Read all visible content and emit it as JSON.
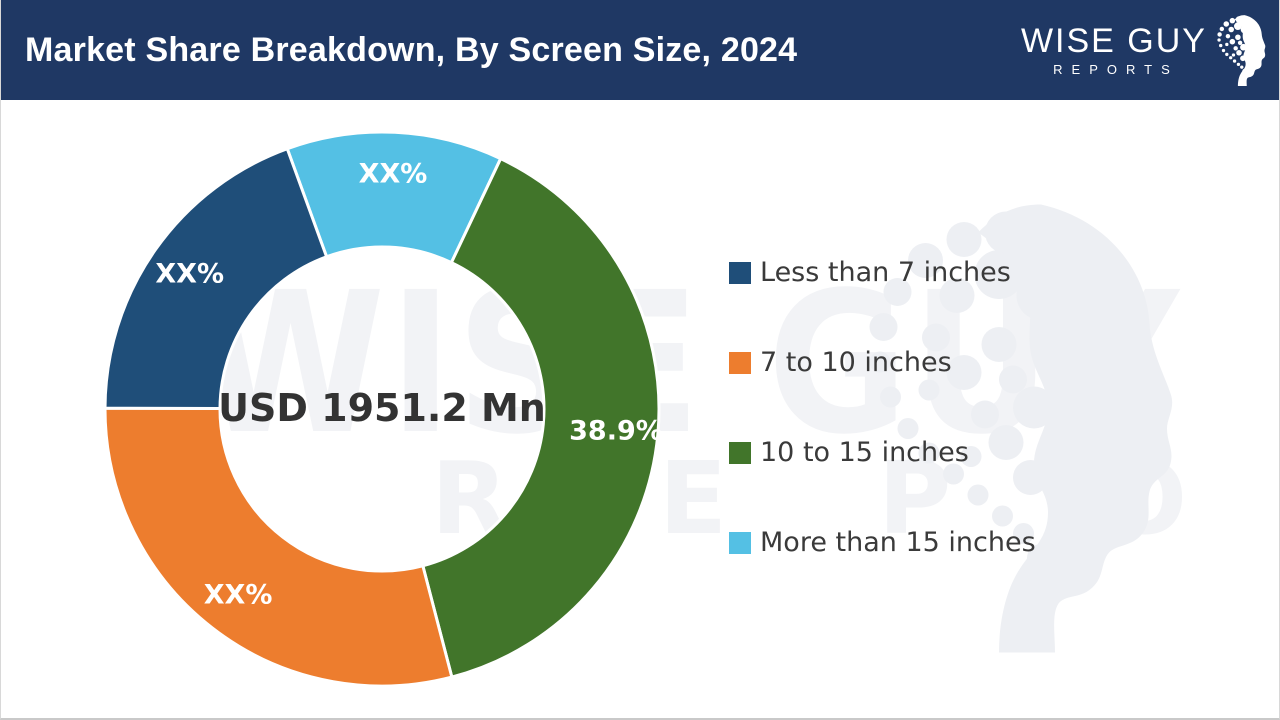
{
  "header": {
    "title": "Market Share Breakdown, By Screen Size, 2024",
    "logo": {
      "line1": "WISE GUY",
      "line2": "REPORTS"
    }
  },
  "watermark": {
    "line1": "WISE GUY",
    "line2": "R E P O R T S"
  },
  "colors": {
    "header_navy": "#1f3864",
    "less_than_7": "#1f4e79",
    "seven_to_10": "#ed7d2e",
    "ten_to_15": "#41752a",
    "more_than_15": "#54c0e4",
    "center_text": "#333333",
    "legend_text": "#3a3a3a"
  },
  "chart_data": {
    "type": "pie",
    "subtype": "donut",
    "title": "Market Share Breakdown, By Screen Size, 2024",
    "center_label": "USD 1951.2 Mn",
    "start_angle_deg": -20,
    "legend_position": "right",
    "segments": [
      {
        "label": "More than 15 inches",
        "display_value": "XX%",
        "share_pct_est": 12.6,
        "color": "#54c0e4"
      },
      {
        "label": "10 to 15 inches",
        "display_value": "38.9%",
        "share_pct_est": 38.9,
        "color": "#41752a"
      },
      {
        "label": "7 to 10 inches",
        "display_value": "XX%",
        "share_pct_est": 29.1,
        "color": "#ed7d2e"
      },
      {
        "label": "Less than 7 inches",
        "display_value": "XX%",
        "share_pct_est": 19.4,
        "color": "#1f4e79"
      }
    ],
    "legend_order": [
      3,
      2,
      1,
      0
    ]
  }
}
